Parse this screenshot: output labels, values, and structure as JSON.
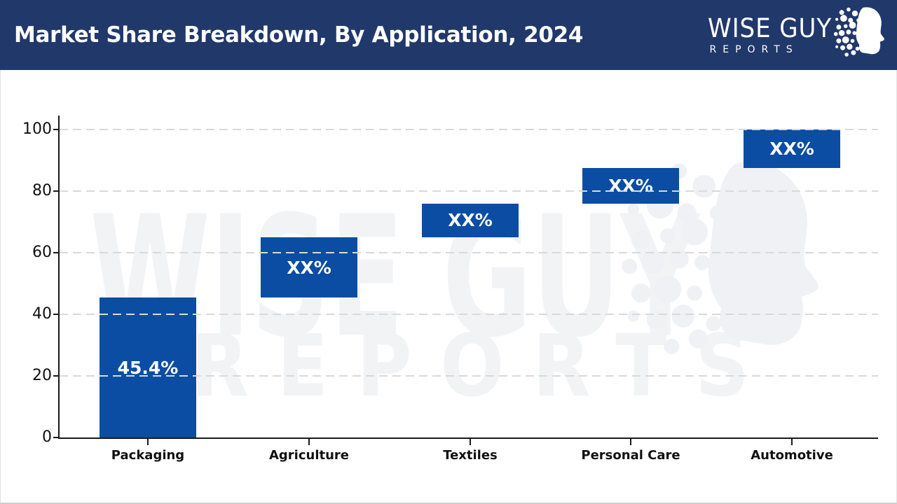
{
  "header": {
    "title": "Market Share Breakdown, By Application, 2024",
    "bg_color": "#21386b",
    "logo": {
      "line1": "WISE GUY",
      "line2": "REPORTS"
    }
  },
  "watermark": {
    "line1": "WISE GUY",
    "line2": "REPORTS"
  },
  "chart_data": {
    "type": "bar",
    "subtype": "waterfall",
    "title": "Market Share Breakdown, By Application, 2024",
    "categories": [
      "Packaging",
      "Agriculture",
      "Textiles",
      "Personal Care",
      "Automotive"
    ],
    "segments": [
      {
        "label": "Packaging",
        "start": 0,
        "end": 45.4,
        "value_label": "45.4%"
      },
      {
        "label": "Agriculture",
        "start": 45.4,
        "end": 65,
        "value_label": "XX%"
      },
      {
        "label": "Textiles",
        "start": 65,
        "end": 76,
        "value_label": "XX%"
      },
      {
        "label": "Personal Care",
        "start": 76,
        "end": 87.5,
        "value_label": "XX%"
      },
      {
        "label": "Automotive",
        "start": 87.5,
        "end": 100,
        "value_label": "XX%"
      }
    ],
    "y_ticks": [
      0,
      20,
      40,
      60,
      80,
      100
    ],
    "ylim": [
      0,
      100
    ],
    "xlabel": "",
    "ylabel": "",
    "grid": "horizontal-dashed",
    "grid_color": "#d9d9d9",
    "bar_color": "#0b4da2",
    "bar_label_color": "#ffffff",
    "axis_color": "#1a1a1a",
    "legend": "none"
  }
}
